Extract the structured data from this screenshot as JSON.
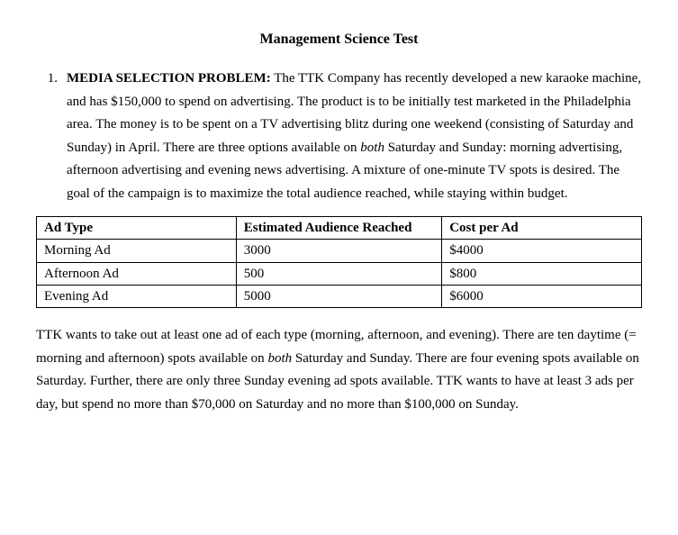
{
  "title": "Management Science Test",
  "problem": {
    "number": "1.",
    "label": "MEDIA SELECTION PROBLEM:",
    "para1_a": "The TTK Company has recently developed a new karaoke machine, and has $150,000 to spend on advertising.  The product is to be initially test marketed in the Philadelphia area.  The money is to be spent on a TV advertising blitz during one weekend (consisting of Saturday and Sunday) in April. There are three options available on ",
    "para1_both1": "both",
    "para1_b": " Saturday and Sunday:  morning advertising, afternoon advertising and evening news advertising.  A mixture of one-minute TV spots is desired.   The goal of the campaign is to maximize the total audience reached, while staying within budget."
  },
  "table": {
    "columns": [
      "Ad Type",
      "Estimated Audience Reached",
      "Cost per Ad"
    ],
    "rows": [
      [
        "Morning Ad",
        "3000",
        "$4000"
      ],
      [
        "Afternoon Ad",
        "500",
        "$800"
      ],
      [
        "Evening Ad",
        "5000",
        "$6000"
      ]
    ]
  },
  "after": {
    "a": "TTK wants to take out at least one ad of each type (morning, afternoon, and evening).  There are ten daytime (= morning and afternoon) spots available on ",
    "both": "both",
    "b": " Saturday and Sunday.  There are four evening spots available on Saturday.  Further, there are only three Sunday evening ad spots available.   TTK wants to have at least 3 ads per day, but spend no more than $70,000 on Saturday and no more than $100,000 on Sunday."
  }
}
